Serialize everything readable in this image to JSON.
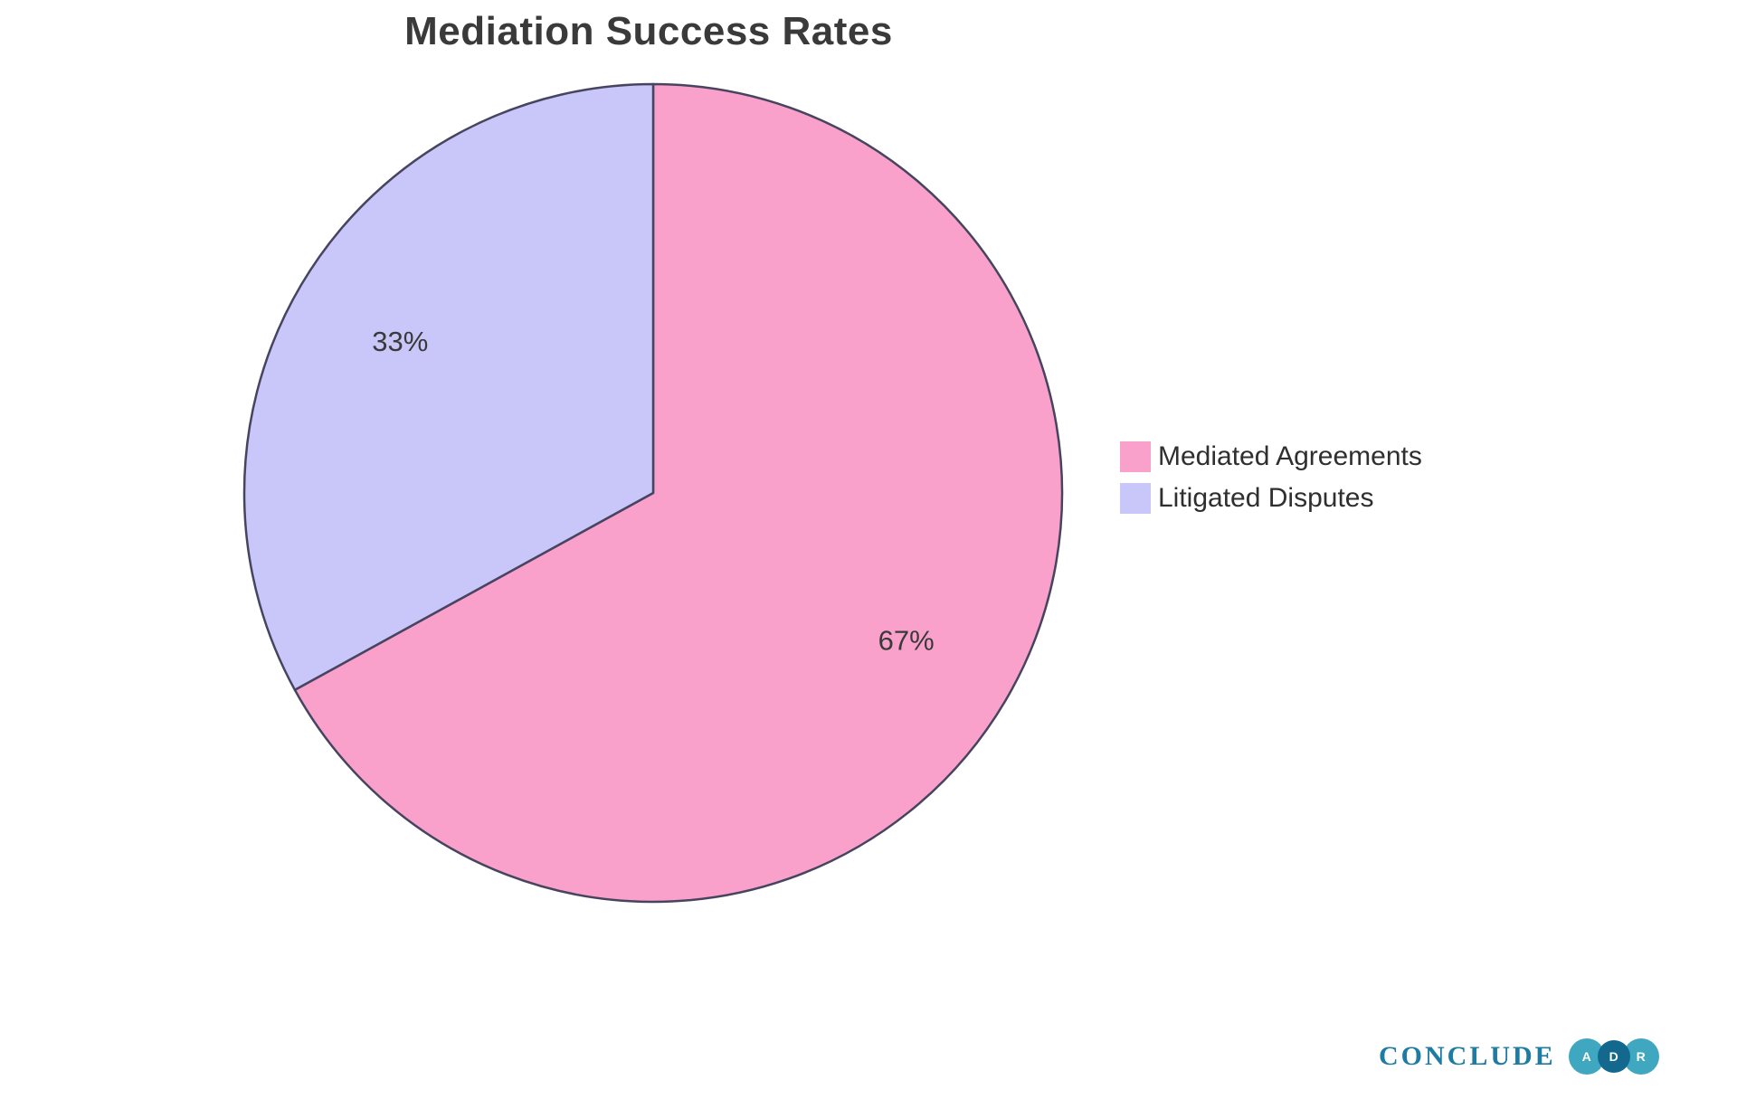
{
  "chart_data": {
    "type": "pie",
    "title": "Mediation Success Rates",
    "slices": [
      {
        "name": "Mediated Agreements",
        "value": 67,
        "label": "67%",
        "color": "#F9A1CB"
      },
      {
        "name": "Litigated Disputes",
        "value": 33,
        "label": "33%",
        "color": "#C9C7F9"
      }
    ],
    "start_angle_deg": 0,
    "direction": "clockwise",
    "stroke_color": "#474460",
    "legend_position": "right",
    "label_color": "#3a3a3a"
  },
  "logo": {
    "wordmark": "CONCLUDE",
    "wordmark_color": "#1E7CA4",
    "badges": [
      {
        "letter": "A",
        "color": "#3FA7C0"
      },
      {
        "letter": "D",
        "color": "#13688E"
      },
      {
        "letter": "R",
        "color": "#3FA7C0"
      }
    ]
  }
}
